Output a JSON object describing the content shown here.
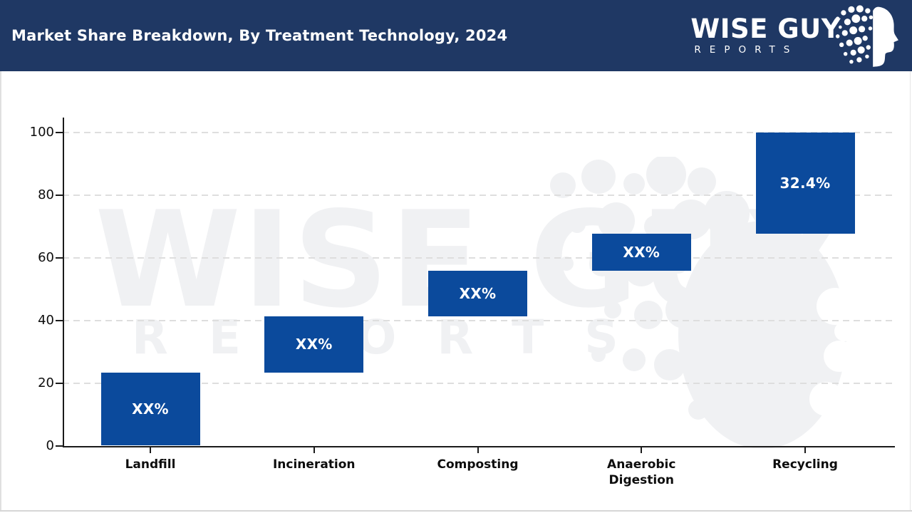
{
  "header": {
    "title": "Market Share Breakdown, By Treatment Technology, 2024",
    "logo": {
      "line1": "WISE GUY",
      "line2": "REPORTS"
    }
  },
  "watermark": {
    "line1": "WISE GUY",
    "line2": "REPORTS"
  },
  "colors": {
    "header_bg": "#1f3864",
    "bar": "#0b4a9c",
    "grid": "#dedede",
    "axis": "#1a1a1a",
    "tick_text": "#0d0d0d",
    "bar_label_text": "#ffffff",
    "watermark": "#f0f1f3"
  },
  "chart_data": {
    "type": "bar",
    "subtype": "waterfall",
    "title": "Market Share Breakdown, By Treatment Technology, 2024",
    "categories": [
      "Landfill",
      "Incineration",
      "Composting",
      "Anaerobic Digestion",
      "Recycling"
    ],
    "segments": [
      [
        0,
        23.4
      ],
      [
        23.4,
        41.2
      ],
      [
        41.2,
        55.7
      ],
      [
        55.7,
        67.6
      ],
      [
        67.6,
        100
      ]
    ],
    "values": [
      23.4,
      17.8,
      14.5,
      11.9,
      32.4
    ],
    "bar_labels": [
      "XX%",
      "XX%",
      "XX%",
      "XX%",
      "32.4%"
    ],
    "xlabel": "",
    "ylabel": "",
    "ylim": [
      0,
      100
    ],
    "yticks": [
      0,
      20,
      40,
      60,
      80,
      100
    ],
    "grid": "horizontal-dashed",
    "legend": "none"
  }
}
